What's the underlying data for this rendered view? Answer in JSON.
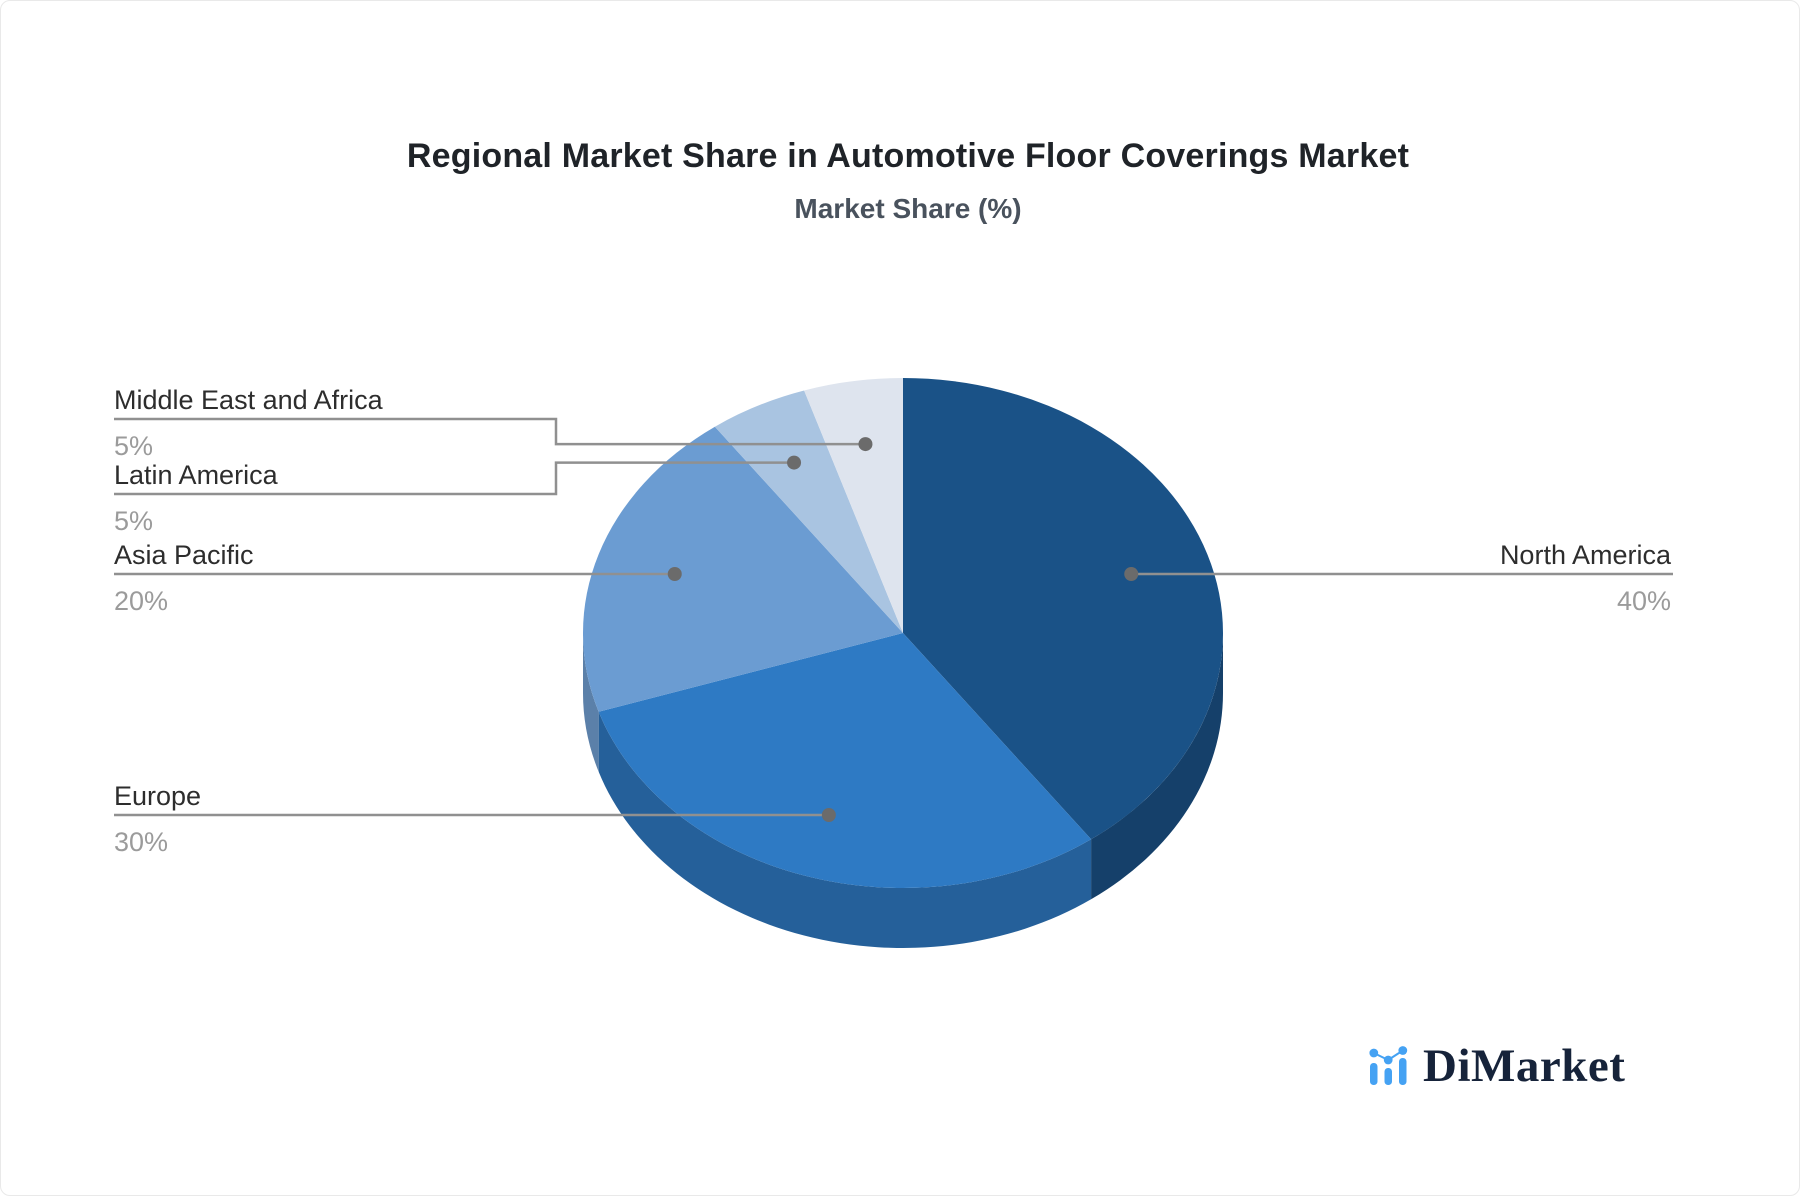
{
  "header": {
    "title": "Regional Market Share in Automotive Floor Coverings Market",
    "subtitle": "Market Share (%)"
  },
  "chart_data": {
    "type": "pie",
    "style": "3d",
    "title": "Regional Market Share in Automotive Floor Coverings Market",
    "value_axis_label": "Market Share (%)",
    "categories": [
      "North America",
      "Europe",
      "Asia Pacific",
      "Latin America",
      "Middle East and Africa"
    ],
    "values": [
      40,
      30,
      20,
      5,
      5
    ],
    "unit": "%",
    "value_labels": [
      "40%",
      "30%",
      "20%",
      "5%",
      "5%"
    ],
    "start_angle_deg": 0,
    "direction": "clockwise",
    "slice_colors": [
      "#1A5287",
      "#2E7AC4",
      "#6B9CD2",
      "#A9C4E1",
      "#DEE4EE"
    ],
    "slice_side_colors": [
      "#15406A",
      "#25609A",
      "#5B80A9",
      "#8FA9C6",
      "#BFC9D8"
    ],
    "connector_color": "#909090",
    "connector_dot_color": "#6b6b6b",
    "label_text_color": "#2d2d2d",
    "label_value_color": "#9b9b9b",
    "legend": "none"
  },
  "logo": {
    "text": "DiMarket",
    "icon": "bar-chart-logo-icon",
    "icon_color": "#45A2F3",
    "text_color": "#16233A"
  }
}
